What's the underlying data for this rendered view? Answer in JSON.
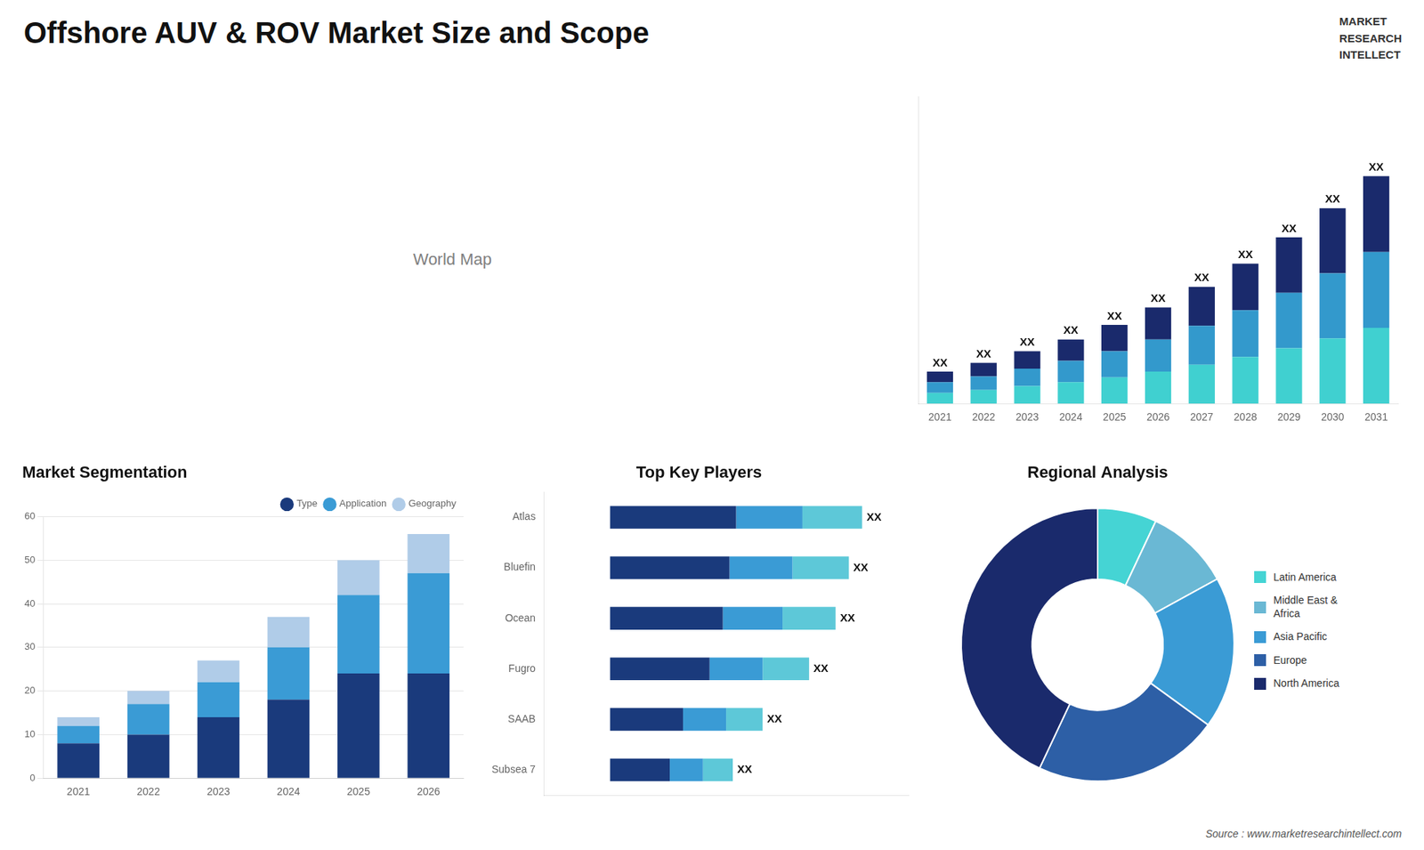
{
  "title": "Offshore AUV & ROV Market Size and Scope",
  "annotations": [
    "World Map",
    "MARKET\nRESEARCH\nINTELLECT",
    "Source : www.marketresearchintellect.com"
  ],
  "chart_data": [
    {
      "type": "bar",
      "stacked": true,
      "categories": [
        "2021",
        "2022",
        "2023",
        "2024",
        "2025",
        "2026",
        "2027",
        "2028",
        "2029",
        "2030",
        "2031"
      ],
      "series": [
        {
          "color": "#40d0d0",
          "values": [
            0.55,
            0.7,
            0.9,
            1.1,
            1.35,
            1.65,
            2.0,
            2.4,
            2.85,
            3.35,
            3.9
          ]
        },
        {
          "color": "#3399cc",
          "values": [
            0.55,
            0.7,
            0.9,
            1.1,
            1.35,
            1.65,
            2.0,
            2.4,
            2.85,
            3.35,
            3.9
          ]
        },
        {
          "color": "#1a2a6c",
          "values": [
            0.55,
            0.7,
            0.9,
            1.1,
            1.35,
            1.65,
            2.0,
            2.4,
            2.85,
            3.35,
            3.9
          ]
        }
      ],
      "ylim": [
        0,
        15.795
      ],
      "tick_labels": "x",
      "grid": false,
      "annotations": [
        "XX",
        "XX",
        "XX",
        "XX",
        "XX",
        "XX",
        "XX",
        "XX",
        "XX",
        "XX",
        "XX"
      ]
    },
    {
      "type": "bar",
      "stacked": true,
      "title": "Market Segmentation",
      "categories": [
        "2021",
        "2022",
        "2023",
        "2024",
        "2025",
        "2026"
      ],
      "series": [
        {
          "name": "Type",
          "color": "#1a3a7c",
          "values": [
            8,
            10,
            14,
            18,
            24,
            24
          ]
        },
        {
          "name": "Application",
          "color": "#3a9bd5",
          "values": [
            4,
            7,
            8,
            12,
            18,
            23
          ]
        },
        {
          "name": "Geography",
          "color": "#b0cce8",
          "values": [
            2,
            3,
            5,
            7,
            8,
            9
          ]
        }
      ],
      "ylim": [
        0,
        60
      ],
      "yticks": [
        0,
        10,
        20,
        30,
        40,
        50,
        60
      ],
      "grid": true,
      "legend": "top"
    },
    {
      "type": "bar",
      "stacked": true,
      "orientation": "horizontal",
      "title": "Top Key Players",
      "categories": [
        "Atlas",
        "Bluefin",
        "Ocean",
        "Fugro",
        "SAAB",
        "Subsea 7"
      ],
      "series": [
        {
          "color": "#1a3a7c",
          "values": [
            0.38,
            0.36,
            0.34,
            0.3,
            0.22,
            0.18
          ]
        },
        {
          "color": "#3a9bd5",
          "values": [
            0.2,
            0.19,
            0.18,
            0.16,
            0.13,
            0.1
          ]
        },
        {
          "color": "#5dc8d8",
          "values": [
            0.18,
            0.17,
            0.16,
            0.14,
            0.11,
            0.09
          ]
        }
      ],
      "xlim": [
        -0.2,
        0.9
      ],
      "tick_labels": "y",
      "grid": false,
      "annotations": [
        "XX",
        "XX",
        "XX",
        "XX",
        "XX",
        "XX"
      ]
    },
    {
      "type": "doughnut",
      "title": "Regional Analysis",
      "categories": [
        "Latin America",
        "Middle East &\nAfrica",
        "Asia Pacific",
        "Europe",
        "North America"
      ],
      "values": [
        7,
        10,
        18,
        22,
        43
      ],
      "colors": [
        "#45d4d4",
        "#6ab8d4",
        "#3a9bd5",
        "#2d5fa6",
        "#1a2a6c"
      ],
      "legend": "right"
    }
  ]
}
